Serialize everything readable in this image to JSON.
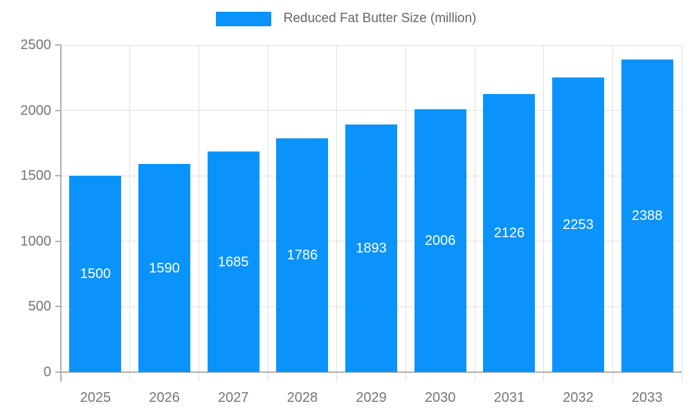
{
  "chart_data": {
    "type": "bar",
    "title": "Reduced Fat Butter Size (million)",
    "legend": "Reduced Fat Butter Size (million)",
    "legend_position": "top-center",
    "categories": [
      "2025",
      "2026",
      "2027",
      "2028",
      "2029",
      "2030",
      "2031",
      "2032",
      "2033"
    ],
    "values": [
      1500,
      1590,
      1685,
      1786,
      1893,
      2006,
      2126,
      2253,
      2388
    ],
    "xlabel": "",
    "ylabel": "",
    "ylim": [
      0,
      2500
    ],
    "yticks": [
      0,
      500,
      1000,
      1500,
      2000,
      2500
    ],
    "grid": true,
    "bar_color": "#0a93fb",
    "bar_label_color": "#ffffff",
    "axis_text_color": "#757575",
    "legend_text_color": "#666666",
    "grid_color": "#e0e0e0",
    "axis_line_color": "#b0b0b0"
  }
}
